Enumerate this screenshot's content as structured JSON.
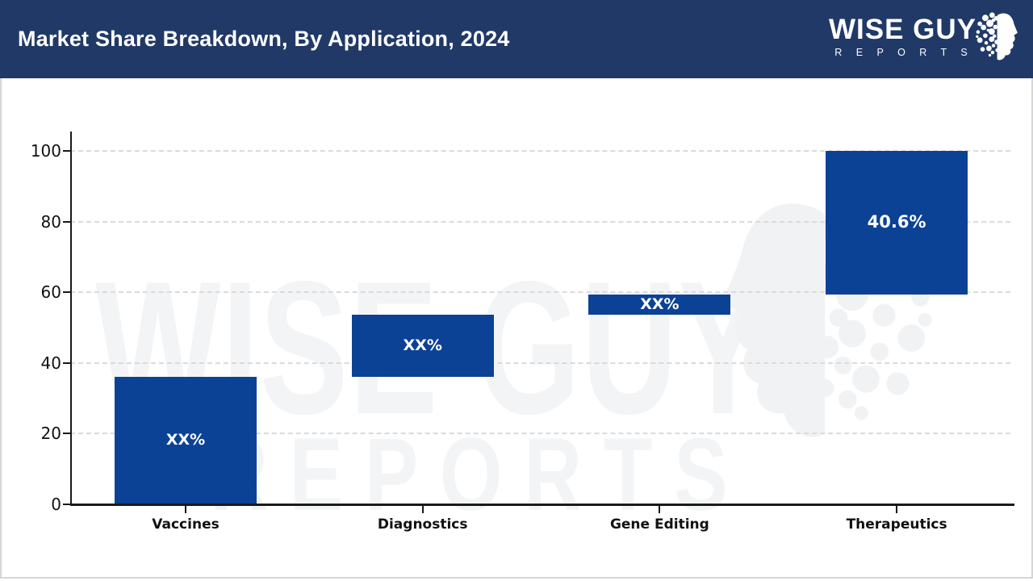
{
  "header": {
    "title": "Market Share Breakdown, By Application, 2024",
    "logo": {
      "line1": "WISE GUY",
      "line2": "R E P O R T S"
    }
  },
  "watermark": {
    "line1": "WISE GUY",
    "line2": "REPORTS"
  },
  "colors": {
    "header_bg": "#213966",
    "bar_blue": "#0b4296",
    "axis": "#1a1a1a",
    "gridline": "#dbdbdb",
    "watermark_gray": "#f3f4f6",
    "bar_label": "#ffffff"
  },
  "chart_data": {
    "type": "bar",
    "subtype": "waterfall-floating-bars",
    "title": "Market Share Breakdown, By Application, 2024",
    "categories": [
      "Vaccines",
      "Diagnostics",
      "Gene Editing",
      "Therapeutics"
    ],
    "segments": [
      {
        "category": "Vaccines",
        "start": 0,
        "end": 36.1,
        "value": 36.1,
        "value_label": "XX%"
      },
      {
        "category": "Diagnostics",
        "start": 36.1,
        "end": 53.6,
        "value": 17.5,
        "value_label": "XX%"
      },
      {
        "category": "Gene Editing",
        "start": 53.6,
        "end": 59.4,
        "value": 5.8,
        "value_label": "XX%"
      },
      {
        "category": "Therapeutics",
        "start": 59.4,
        "end": 100,
        "value": 40.6,
        "value_label": "40.6%"
      }
    ],
    "xlabel": "",
    "ylabel": "",
    "ylim": [
      0,
      100
    ],
    "yticks": [
      0,
      20,
      40,
      60,
      80,
      100
    ],
    "grid": "horizontal dashed",
    "legend": "none",
    "bar_color": "#0b4296"
  }
}
